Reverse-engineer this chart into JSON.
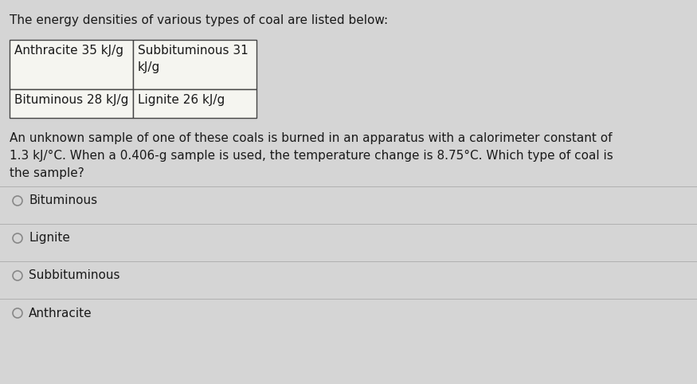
{
  "bg_color": "#d5d5d5",
  "title_text": "The energy densities of various types of coal are listed below:",
  "title_fontsize": 11.0,
  "title_color": "#1a1a1a",
  "table_cells": [
    [
      "Anthracite 35 kJ/g",
      "Subbituminous 31\nkJ/g"
    ],
    [
      "Bituminous 28 kJ/g",
      "Lignite 26 kJ/g"
    ]
  ],
  "table_cell_fontsize": 11.0,
  "paragraph_text": "An unknown sample of one of these coals is burned in an apparatus with a calorimeter constant of\n1.3 kJ/°C. When a 0.406-g sample is used, the temperature change is 8.75°C. Which type of coal is\nthe sample?",
  "paragraph_fontsize": 11.0,
  "paragraph_color": "#1a1a1a",
  "choices": [
    "Bituminous",
    "Lignite",
    "Subbituminous",
    "Anthracite"
  ],
  "choices_fontsize": 11.0,
  "choices_color": "#1a1a1a",
  "circle_color": "#888888",
  "separator_color": "#b0b0b0",
  "table_border_color": "#444444",
  "table_bg": "#f5f5f0"
}
